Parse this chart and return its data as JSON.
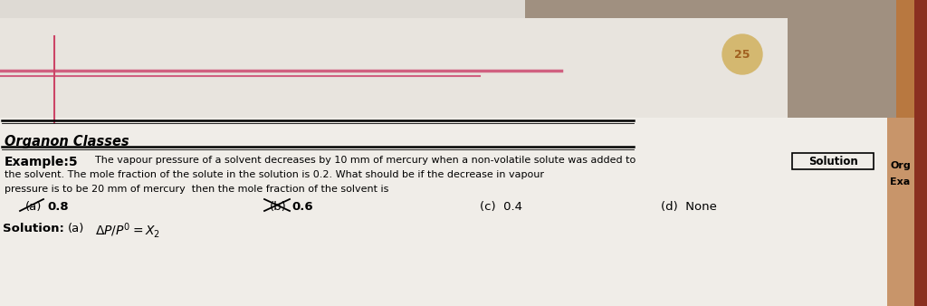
{
  "header_text": "Organon Classes",
  "example_label": "Example:5",
  "solution_label": "Solution",
  "q_line1": "The vapour pressure of a solvent decreases by 10 mm of mercury when a non-volatile solute was added to",
  "q_line2": "the solvent. The mole fraction of the solute in the solution is 0.2. What should be if the decrease in vapour",
  "q_line3": "pressure is to be 20 mm of mercury  then the mole fraction of the solvent is",
  "opt_a_num": "0.8",
  "opt_b_num": "0.6",
  "opt_c": "(c)  0.4",
  "opt_d": "(d)  None",
  "sol_text": "Solution:",
  "sol_label": "(a)",
  "sol_formula": "$\\Delta P/P^0 = X_2$",
  "org_label": "Org",
  "exa_label": "Exa",
  "top_bg": "#b0a8a0",
  "top_page_color": "#e8e0d8",
  "main_page_color": "#f0ede8",
  "right_strip_color": "#c8956a",
  "pink_line_color": "#d06080",
  "header_bg": "#e8e4df"
}
